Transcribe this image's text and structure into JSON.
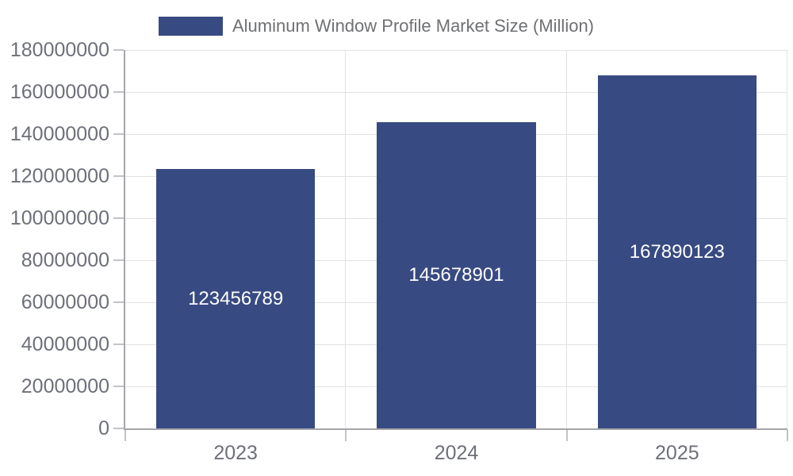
{
  "chart_data": {
    "type": "bar",
    "title": "Aluminum Window Profile Market Size (Million)",
    "legend": {
      "label": "Aluminum Window Profile Market Size (Million)",
      "position": "top"
    },
    "categories": [
      "2023",
      "2024",
      "2025"
    ],
    "values": [
      123456789,
      145678901,
      167890123
    ],
    "bar_labels": [
      "123456789",
      "145678901",
      "167890123"
    ],
    "xlabel": "",
    "ylabel": "",
    "ylim": [
      0,
      180000000
    ],
    "ytick_step": 20000000,
    "ytick_labels": [
      "0",
      "20000000",
      "40000000",
      "60000000",
      "80000000",
      "100000000",
      "120000000",
      "140000000",
      "160000000",
      "180000000"
    ],
    "grid": true,
    "bar_width_fraction": 0.72,
    "bar_label_position": "inside-center"
  },
  "colors": {
    "bar": "#384A82",
    "grid": "#E2E2E2",
    "axis": "#A5A6A9",
    "tick": "#C2C3C6",
    "tick_text": "#6E7079",
    "legend_text": "#6F7073",
    "bar_label_text": "#FFFFFF",
    "background": "#FFFFFF"
  }
}
